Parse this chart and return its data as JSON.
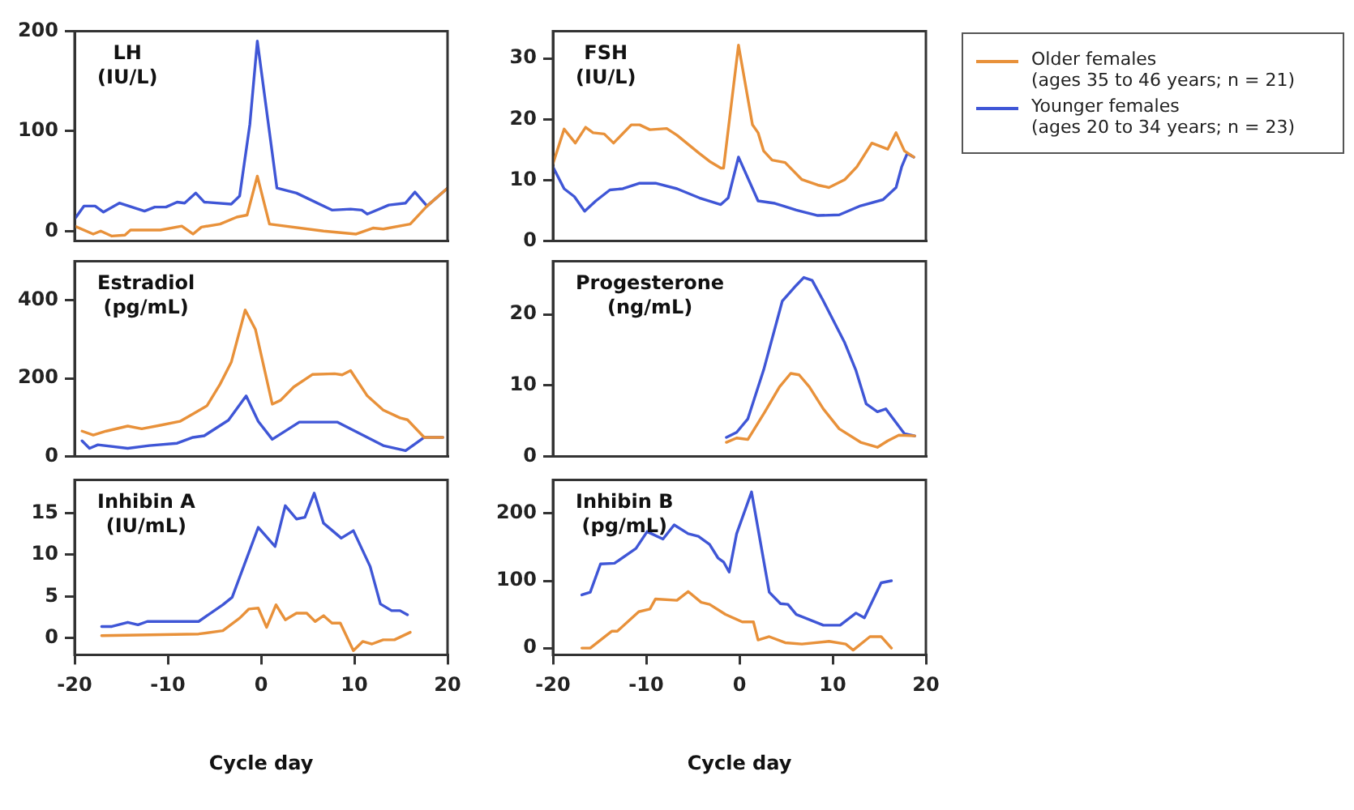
{
  "chart_data": [
    {
      "type": "line",
      "title": "LH",
      "subtitle": "(IU/L)",
      "xlim": [
        -20,
        20
      ],
      "xticks": [
        -20,
        -10,
        0,
        10,
        20
      ],
      "ylim": [
        -10,
        200
      ],
      "yticks": [
        0,
        100,
        200
      ],
      "tick_labels": "y",
      "grid": false,
      "series": [
        {
          "color": "#e8913a",
          "x": [
            -20,
            -18,
            -17.2,
            -16,
            -14.6,
            -14,
            -10.8,
            -8.5,
            -7.3,
            -6.4,
            -4.4,
            -2.6,
            -1.5,
            -0.4,
            0.9,
            6.7,
            10.2,
            12,
            13.1,
            16,
            17.8,
            20
          ],
          "values": [
            5,
            -3,
            0,
            -5,
            -4,
            1,
            1,
            5,
            -3,
            4,
            7,
            14,
            16,
            55,
            7,
            0,
            -3,
            3,
            2,
            7,
            25,
            43
          ]
        },
        {
          "color": "#3f56d6",
          "x": [
            -20,
            -19,
            -17.8,
            -16.9,
            -15.2,
            -12.5,
            -11.4,
            -10.2,
            -9,
            -8.2,
            -7,
            -6.1,
            -3.2,
            -2.3,
            -1.2,
            -0.4,
            1.7,
            3.8,
            7.6,
            9.6,
            10.8,
            11.4,
            13.7,
            15.5,
            16.5,
            17.8,
            20
          ],
          "values": [
            12,
            25,
            25,
            19,
            28,
            20,
            24,
            24,
            29,
            28,
            38,
            29,
            27,
            35,
            107,
            190,
            43,
            38,
            21,
            22,
            21,
            17,
            26,
            28,
            39,
            25,
            43
          ]
        }
      ]
    },
    {
      "type": "line",
      "title": "FSH",
      "subtitle": "(IU/L)",
      "xlim": [
        -20,
        20
      ],
      "xticks": [
        -20,
        -10,
        0,
        10,
        20
      ],
      "ylim": [
        0,
        34.5
      ],
      "yticks": [
        0,
        10,
        20,
        30
      ],
      "tick_labels": "y",
      "grid": false,
      "legend": "right",
      "series": [
        {
          "name": "Older females (ages 35 to 46 years; n = 21)",
          "color": "#e8913a",
          "x": [
            -20,
            -18.8,
            -17.6,
            -16.5,
            -15.7,
            -14.5,
            -13.5,
            -11.6,
            -10.7,
            -9.6,
            -7.8,
            -6.7,
            -4.3,
            -3.2,
            -2,
            -1.7,
            -0.1,
            1.4,
            2,
            2.6,
            3.5,
            4.9,
            6.7,
            8.4,
            9.6,
            11.3,
            12.6,
            14.2,
            15.9,
            16.8,
            17.7,
            18.7
          ],
          "values": [
            12.7,
            18.4,
            16.1,
            18.7,
            17.8,
            17.6,
            16.1,
            19.1,
            19.1,
            18.3,
            18.5,
            17.4,
            14.4,
            13.1,
            12,
            12,
            32.2,
            19.1,
            17.8,
            14.8,
            13.3,
            12.9,
            10.1,
            9.2,
            8.8,
            10.1,
            12.2,
            16.1,
            15.1,
            17.8,
            14.8,
            13.8
          ]
        },
        {
          "name": "Younger females (ages 20 to 34 years; n = 23)",
          "color": "#3f56d6",
          "x": [
            -20,
            -18.8,
            -17.7,
            -16.6,
            -15.4,
            -13.9,
            -12.5,
            -10.7,
            -9,
            -6.7,
            -4.3,
            -2,
            -1.2,
            -0.1,
            2,
            3.8,
            6.1,
            8.4,
            10.7,
            13,
            15.4,
            16.8,
            17.4,
            18,
            18.7
          ],
          "values": [
            12.2,
            8.6,
            7.3,
            4.9,
            6.6,
            8.4,
            8.6,
            9.5,
            9.5,
            8.6,
            7.1,
            6,
            7.1,
            13.8,
            6.6,
            6.2,
            5.1,
            4.2,
            4.3,
            5.8,
            6.8,
            8.8,
            12.2,
            14.4,
            13.8
          ]
        }
      ]
    },
    {
      "type": "line",
      "title": "Estradiol",
      "subtitle": "(pg/mL)",
      "xlim": [
        -20,
        20
      ],
      "xticks": [
        -20,
        -10,
        0,
        10,
        20
      ],
      "ylim": [
        0,
        500
      ],
      "yticks": [
        0,
        200,
        400
      ],
      "tick_labels": "y",
      "grid": false,
      "series": [
        {
          "color": "#e8913a",
          "x": [
            -19.2,
            -18,
            -16.6,
            -14.3,
            -12.8,
            -10.8,
            -8.7,
            -7.3,
            -5.8,
            -4.4,
            -3.2,
            -1.7,
            -0.6,
            1.2,
            2.1,
            3.5,
            5.5,
            7.9,
            8.7,
            9.6,
            11.4,
            13.1,
            14.9,
            15.7,
            17.5,
            19.5
          ],
          "values": [
            65,
            55,
            65,
            78,
            71,
            80,
            90,
            109,
            130,
            185,
            241,
            375,
            325,
            134,
            144,
            178,
            210,
            212,
            209,
            220,
            155,
            119,
            99,
            94,
            49,
            49
          ]
        },
        {
          "color": "#3f56d6",
          "x": [
            -19.2,
            -18.4,
            -17.5,
            -14.3,
            -12,
            -9,
            -7.3,
            -6.1,
            -3.5,
            -1.6,
            -0.3,
            1.2,
            4.1,
            8.2,
            10.8,
            13.1,
            15.5,
            17.5,
            19.5
          ],
          "values": [
            40,
            21,
            30,
            21,
            28,
            34,
            49,
            53,
            93,
            155,
            90,
            44,
            88,
            88,
            56,
            28,
            15,
            49,
            49
          ]
        }
      ]
    },
    {
      "type": "line",
      "title": "Progesterone",
      "subtitle": "(ng/mL)",
      "xlim": [
        -20,
        20
      ],
      "xticks": [
        -20,
        -10,
        0,
        10,
        20
      ],
      "ylim": [
        0,
        27.5
      ],
      "yticks": [
        0,
        10,
        20
      ],
      "tick_labels": "y",
      "grid": false,
      "series": [
        {
          "color": "#e8913a",
          "x": [
            -1.4,
            -0.3,
            0.9,
            2.6,
            4.3,
            5.5,
            6.4,
            7.5,
            9,
            10.7,
            13,
            14.8,
            15.9,
            17.1,
            18.8
          ],
          "values": [
            2,
            2.6,
            2.4,
            6,
            9.8,
            11.7,
            11.5,
            9.8,
            6.7,
            3.9,
            2,
            1.3,
            2.2,
            3,
            2.9
          ]
        },
        {
          "color": "#3f56d6",
          "x": [
            -1.4,
            -0.3,
            0.9,
            2.6,
            4.6,
            6.1,
            6.9,
            7.8,
            9,
            11.3,
            12.5,
            13.6,
            14.8,
            15.7,
            17.7,
            18.8
          ],
          "values": [
            2.7,
            3.4,
            5.3,
            12.2,
            21.9,
            24.1,
            25.2,
            24.8,
            21.9,
            16,
            12.1,
            7.4,
            6.3,
            6.7,
            3.2,
            2.9
          ]
        }
      ]
    },
    {
      "type": "line",
      "title": "Inhibin A",
      "subtitle": "(IU/mL)",
      "xlabel": "Cycle day",
      "xlim": [
        -20,
        20
      ],
      "xticks": [
        -20,
        -10,
        0,
        10,
        20
      ],
      "ylim": [
        -2,
        19
      ],
      "yticks": [
        0,
        5,
        10,
        15
      ],
      "grid": false,
      "series": [
        {
          "color": "#e8913a",
          "x": [
            -17.1,
            -6.7,
            -4.1,
            -2.3,
            -1.3,
            -0.3,
            0.6,
            1.6,
            2.6,
            3.8,
            4.9,
            5.8,
            6.7,
            7.6,
            8.5,
            9.9,
            10.9,
            11.9,
            13.1,
            14.3,
            16
          ],
          "values": [
            0.3,
            0.5,
            0.9,
            2.4,
            3.5,
            3.6,
            1.3,
            4,
            2.2,
            3,
            3,
            2,
            2.7,
            1.8,
            1.8,
            -1.5,
            -0.4,
            -0.7,
            -0.2,
            -0.2,
            0.7
          ]
        },
        {
          "color": "#3f56d6",
          "x": [
            -17.1,
            -16,
            -14.3,
            -13.2,
            -12.2,
            -6.7,
            -4.1,
            -3.1,
            -0.3,
            1.5,
            2.6,
            3.8,
            4.7,
            5.7,
            6.7,
            8.6,
            9.9,
            11.7,
            12.8,
            14,
            14.9,
            15.7
          ],
          "values": [
            1.4,
            1.4,
            1.9,
            1.6,
            2,
            2,
            4,
            4.9,
            13.3,
            11,
            15.9,
            14.3,
            14.5,
            17.4,
            13.8,
            12,
            12.9,
            8.6,
            4.1,
            3.3,
            3.3,
            2.8
          ]
        }
      ]
    },
    {
      "type": "line",
      "title": "Inhibin B",
      "subtitle": "(pg/mL)",
      "xlabel": "Cycle day",
      "xlim": [
        -20,
        20
      ],
      "xticks": [
        -20,
        -10,
        0,
        10,
        20
      ],
      "ylim": [
        -10,
        250
      ],
      "yticks": [
        0,
        100,
        200
      ],
      "grid": false,
      "series": [
        {
          "color": "#e8913a",
          "x": [
            -16.9,
            -16,
            -13.7,
            -13.1,
            -10.8,
            -9.6,
            -9,
            -6.7,
            -5.5,
            -4.1,
            -3.2,
            -1.5,
            0.3,
            1.5,
            2,
            3.2,
            4.9,
            6.7,
            9.6,
            11.4,
            12.2,
            14,
            15.2,
            16.3
          ],
          "values": [
            0,
            0,
            25,
            25,
            54,
            58,
            73,
            71,
            84,
            68,
            65,
            50,
            39,
            39,
            12,
            17,
            8,
            6,
            10,
            6,
            -3,
            17,
            17,
            0
          ]
        },
        {
          "color": "#3f56d6",
          "x": [
            -16.9,
            -16,
            -14.9,
            -13.4,
            -11.1,
            -9.9,
            -8.2,
            -7,
            -5.5,
            -4.4,
            -3.2,
            -2.3,
            -1.7,
            -1.1,
            -0.3,
            1.3,
            3.2,
            4.4,
            5.2,
            6.1,
            9,
            10.8,
            12.5,
            13.4,
            15.2,
            16.3
          ],
          "values": [
            79,
            83,
            125,
            126,
            148,
            173,
            162,
            183,
            170,
            166,
            154,
            134,
            128,
            113,
            170,
            232,
            83,
            66,
            65,
            50,
            34,
            34,
            52,
            45,
            97,
            100
          ]
        }
      ]
    }
  ]
}
